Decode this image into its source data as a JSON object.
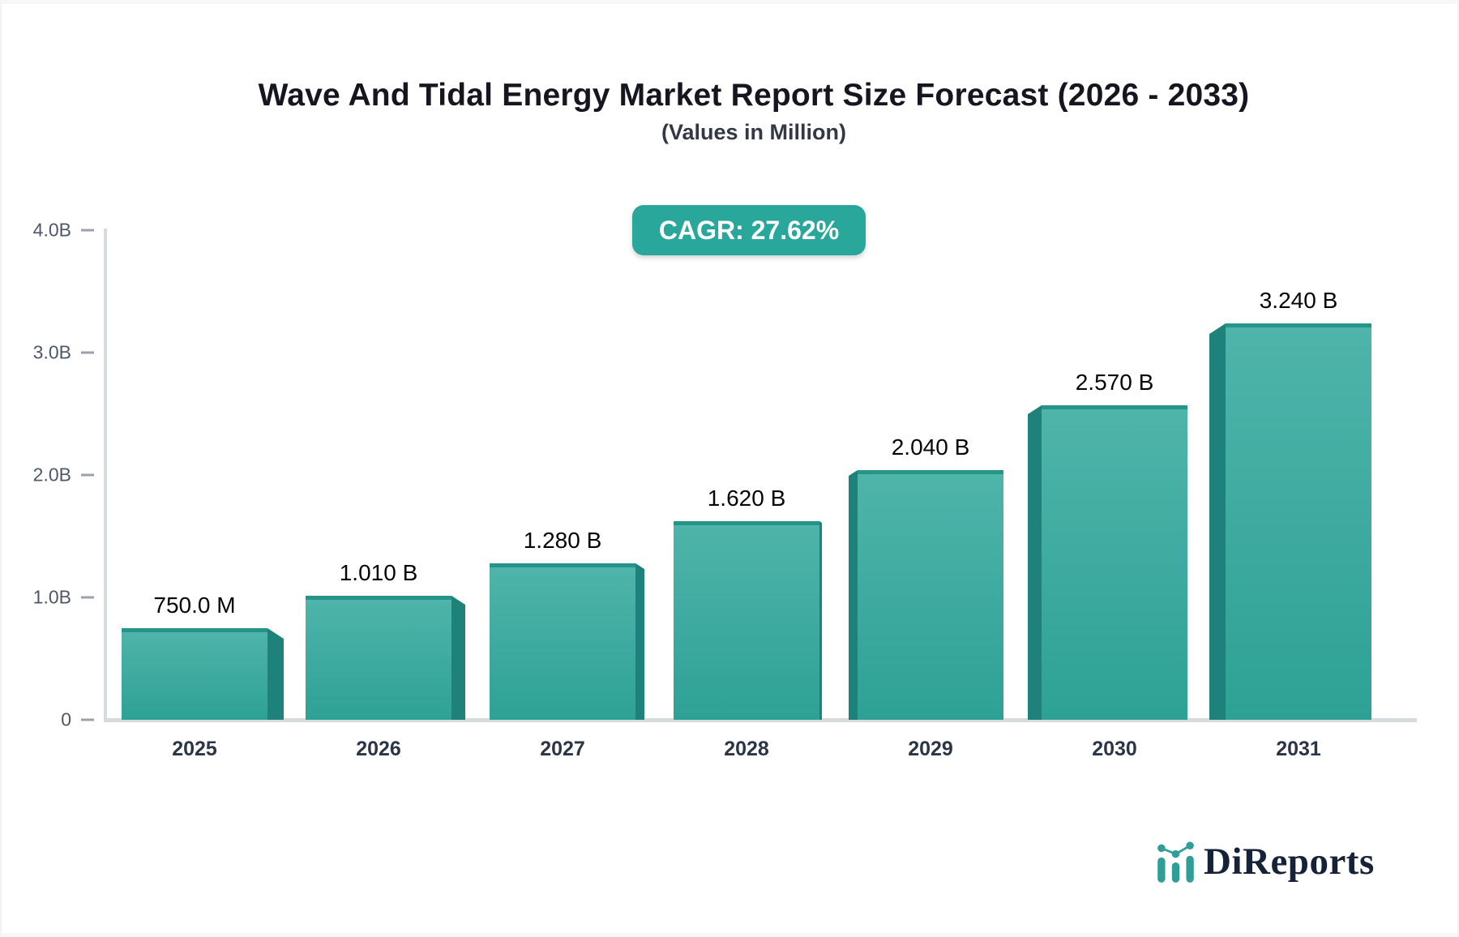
{
  "header": {
    "title": "Wave And Tidal Energy Market Report Size Forecast (2026 - 2033)",
    "subtitle": "(Values in Million)"
  },
  "badge": {
    "label": "CAGR: 27.62%",
    "bg_color": "#2aa79b",
    "text_color": "#ffffff"
  },
  "chart_data": {
    "type": "bar",
    "title": "Wave And Tidal Energy Market Report Size Forecast (2026 - 2033)",
    "subtitle": "(Values in Million)",
    "categories": [
      "2025",
      "2026",
      "2027",
      "2028",
      "2029",
      "2030",
      "2031"
    ],
    "values_billions": [
      0.75,
      1.01,
      1.28,
      1.62,
      2.04,
      2.57,
      3.24
    ],
    "value_labels": [
      "750.0 M",
      "1.010 B",
      "1.280 B",
      "1.620 B",
      "2.040 B",
      "2.570 B",
      "3.240 B"
    ],
    "y_ticks": [
      {
        "label": "4.0B",
        "value": 4
      },
      {
        "label": "3.0B",
        "value": 3
      },
      {
        "label": "2.0B",
        "value": 2
      },
      {
        "label": "1.0B",
        "value": 1
      },
      {
        "label": "0",
        "value": 0
      }
    ],
    "ylim": [
      0,
      4
    ],
    "xlabel": "",
    "ylabel": "",
    "grid": false,
    "legend": false,
    "bar_face_top_color": "#4fb4aa",
    "bar_face_bottom_color": "#2ea195",
    "bar_side_color": "#1e827a",
    "bar_top_edge_color": "#27948a"
  },
  "logo": {
    "text": "DiReports",
    "icon": "bar-chart-logo-icon",
    "icon_color": "#2f9e96",
    "text_color": "#152238"
  }
}
